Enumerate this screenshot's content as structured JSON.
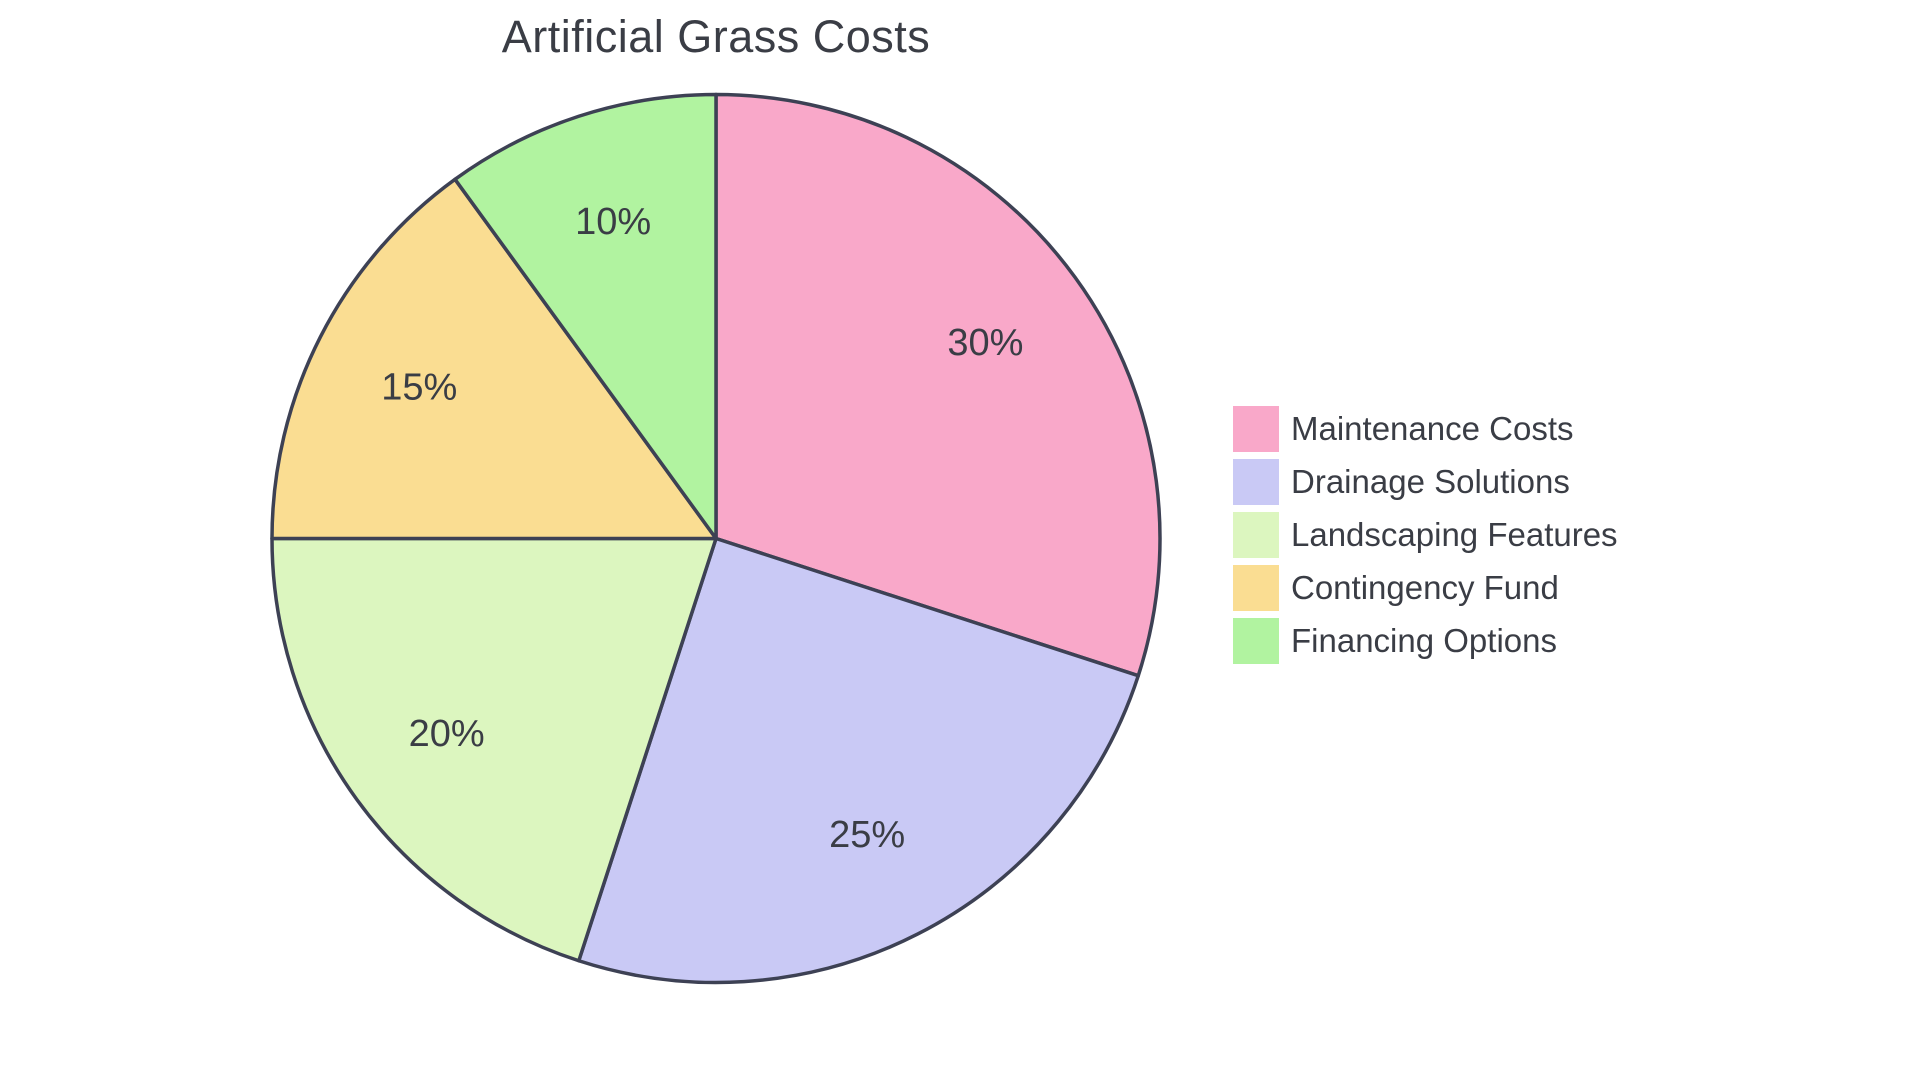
{
  "colors": {
    "background": "#FFFFFF",
    "text": "#3A3D45",
    "slice_border": "#3D4154"
  },
  "chart_data": {
    "type": "pie",
    "title": "Artificial Grass Costs",
    "categories": [
      "Maintenance Costs",
      "Drainage Solutions",
      "Landscaping Features",
      "Contingency Fund",
      "Financing Options"
    ],
    "values": [
      30,
      25,
      20,
      15,
      10
    ],
    "unit": "percent",
    "slice_labels": [
      "30%",
      "25%",
      "20%",
      "15%",
      "10%"
    ],
    "slice_colors": [
      "#F9A8C9",
      "#C9C9F5",
      "#DCF6BF",
      "#FADD92",
      "#B1F3A0"
    ],
    "start_angle": "top",
    "direction": "clockwise",
    "labels_position": "inside",
    "legend_position": "right",
    "legend_items": [
      {
        "label": "Maintenance Costs",
        "color": "#F9A8C9"
      },
      {
        "label": "Drainage Solutions",
        "color": "#C9C9F5"
      },
      {
        "label": "Landscaping Features",
        "color": "#DCF6BF"
      },
      {
        "label": "Contingency Fund",
        "color": "#FADD92"
      },
      {
        "label": "Financing Options",
        "color": "#B1F3A0"
      }
    ]
  }
}
